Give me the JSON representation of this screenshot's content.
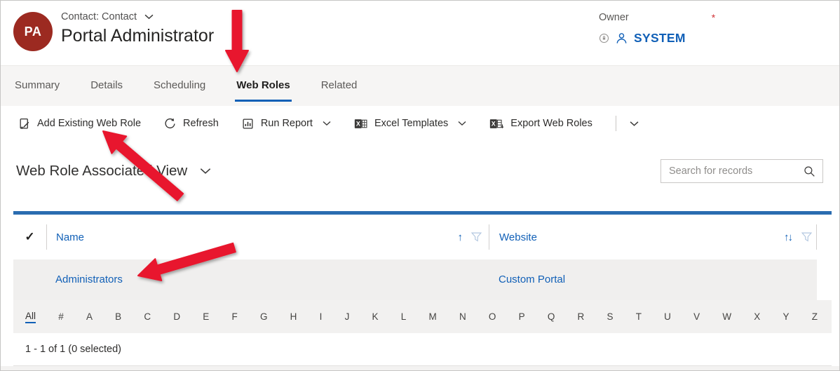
{
  "colors": {
    "accent_blue": "#1160b7",
    "grid_top_bar": "#2a6cb0",
    "annotation_arrow_red": "#e8182d",
    "avatar_background": "#9c2a21",
    "required_marker_red": "#d13438",
    "tab_strip_background": "#f6f5f4",
    "data_row_background": "#f0efee"
  },
  "header": {
    "avatar_initials": "PA",
    "record_type": "Contact: Contact",
    "record_name": "Portal Administrator",
    "owner": {
      "label": "Owner",
      "required_marker": "*",
      "value": "SYSTEM"
    }
  },
  "tabs": {
    "active": "Web Roles",
    "items": [
      {
        "label": "Summary"
      },
      {
        "label": "Details"
      },
      {
        "label": "Scheduling"
      },
      {
        "label": "Web Roles"
      },
      {
        "label": "Related"
      }
    ]
  },
  "command_bar": {
    "items": [
      {
        "label": "Add Existing Web Role",
        "icon": "add-existing-icon",
        "has_dropdown": false
      },
      {
        "label": "Refresh",
        "icon": "refresh-icon",
        "has_dropdown": false
      },
      {
        "label": "Run Report",
        "icon": "run-report-icon",
        "has_dropdown": true
      },
      {
        "label": "Excel Templates",
        "icon": "excel-icon",
        "has_dropdown": true
      },
      {
        "label": "Export Web Roles",
        "icon": "excel-export-icon",
        "has_dropdown": false
      }
    ],
    "overflow_icon": "chevron-down-icon"
  },
  "view": {
    "title": "Web Role Associated View",
    "title_dropdown_icon": "chevron-down-icon",
    "search_placeholder": "Search for records",
    "search_icon": "magnifier-icon"
  },
  "grid": {
    "select_all_icon": "checkmark-icon",
    "checkmark_glyph": "✓",
    "columns": [
      {
        "label": "Name",
        "sort": "ascending",
        "filter_icon": "filter-funnel-icon"
      },
      {
        "label": "Website",
        "sort": "unsorted",
        "filter_icon": "filter-funnel-icon"
      }
    ],
    "sort_asc_glyph": "↑",
    "sort_both_glyph": "↑↓",
    "rows": [
      {
        "name": "Administrators",
        "website": "Custom Portal"
      }
    ],
    "jump_bar": [
      "All",
      "#",
      "A",
      "B",
      "C",
      "D",
      "E",
      "F",
      "G",
      "H",
      "I",
      "J",
      "K",
      "L",
      "M",
      "N",
      "O",
      "P",
      "Q",
      "R",
      "S",
      "T",
      "U",
      "V",
      "W",
      "X",
      "Y",
      "Z"
    ],
    "jump_active": "All",
    "status": "1 - 1 of 1 (0 selected)"
  },
  "annotations": {
    "arrows": [
      "arrow-pointing-to-web-roles-tab",
      "arrow-pointing-to-add-existing-web-role",
      "arrow-pointing-to-administrators-row"
    ]
  }
}
